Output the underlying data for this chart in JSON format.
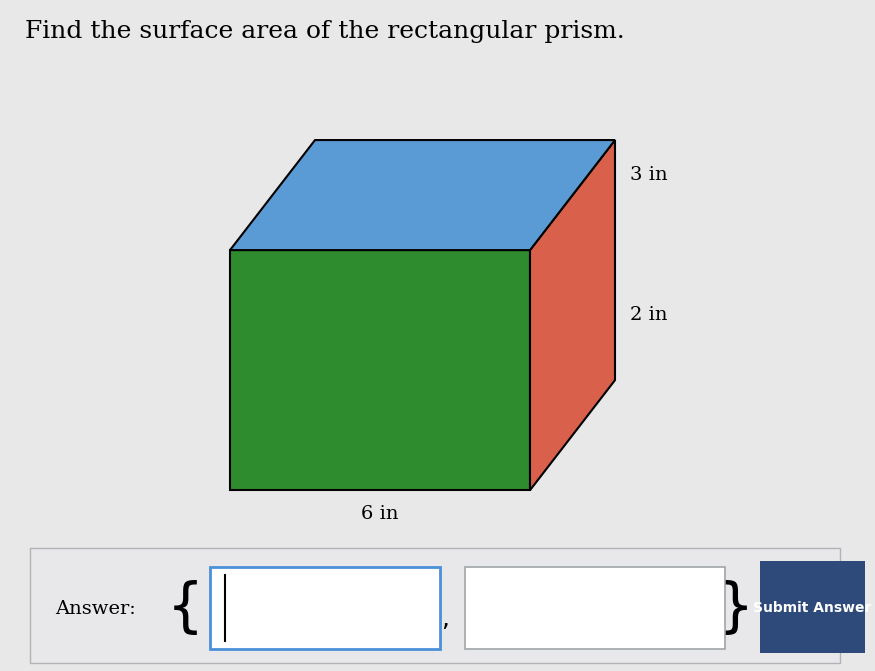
{
  "title": "Find the surface area of the rectangular prism.",
  "title_fontsize": 18,
  "background_color": "#e8e8e8",
  "box_color_top": "#5b9bd5",
  "box_color_front": "#2e8b2e",
  "box_color_side": "#d9604a",
  "label_6in": "6 in",
  "label_3in": "3 in",
  "label_2in": "2 in",
  "answer_label": "Answer:",
  "submit_label": "Submit Answer",
  "submit_color": "#2d4a7a",
  "answer_section_bg": "#dcdde0",
  "answer_inner_bg": "#e8e8ea"
}
